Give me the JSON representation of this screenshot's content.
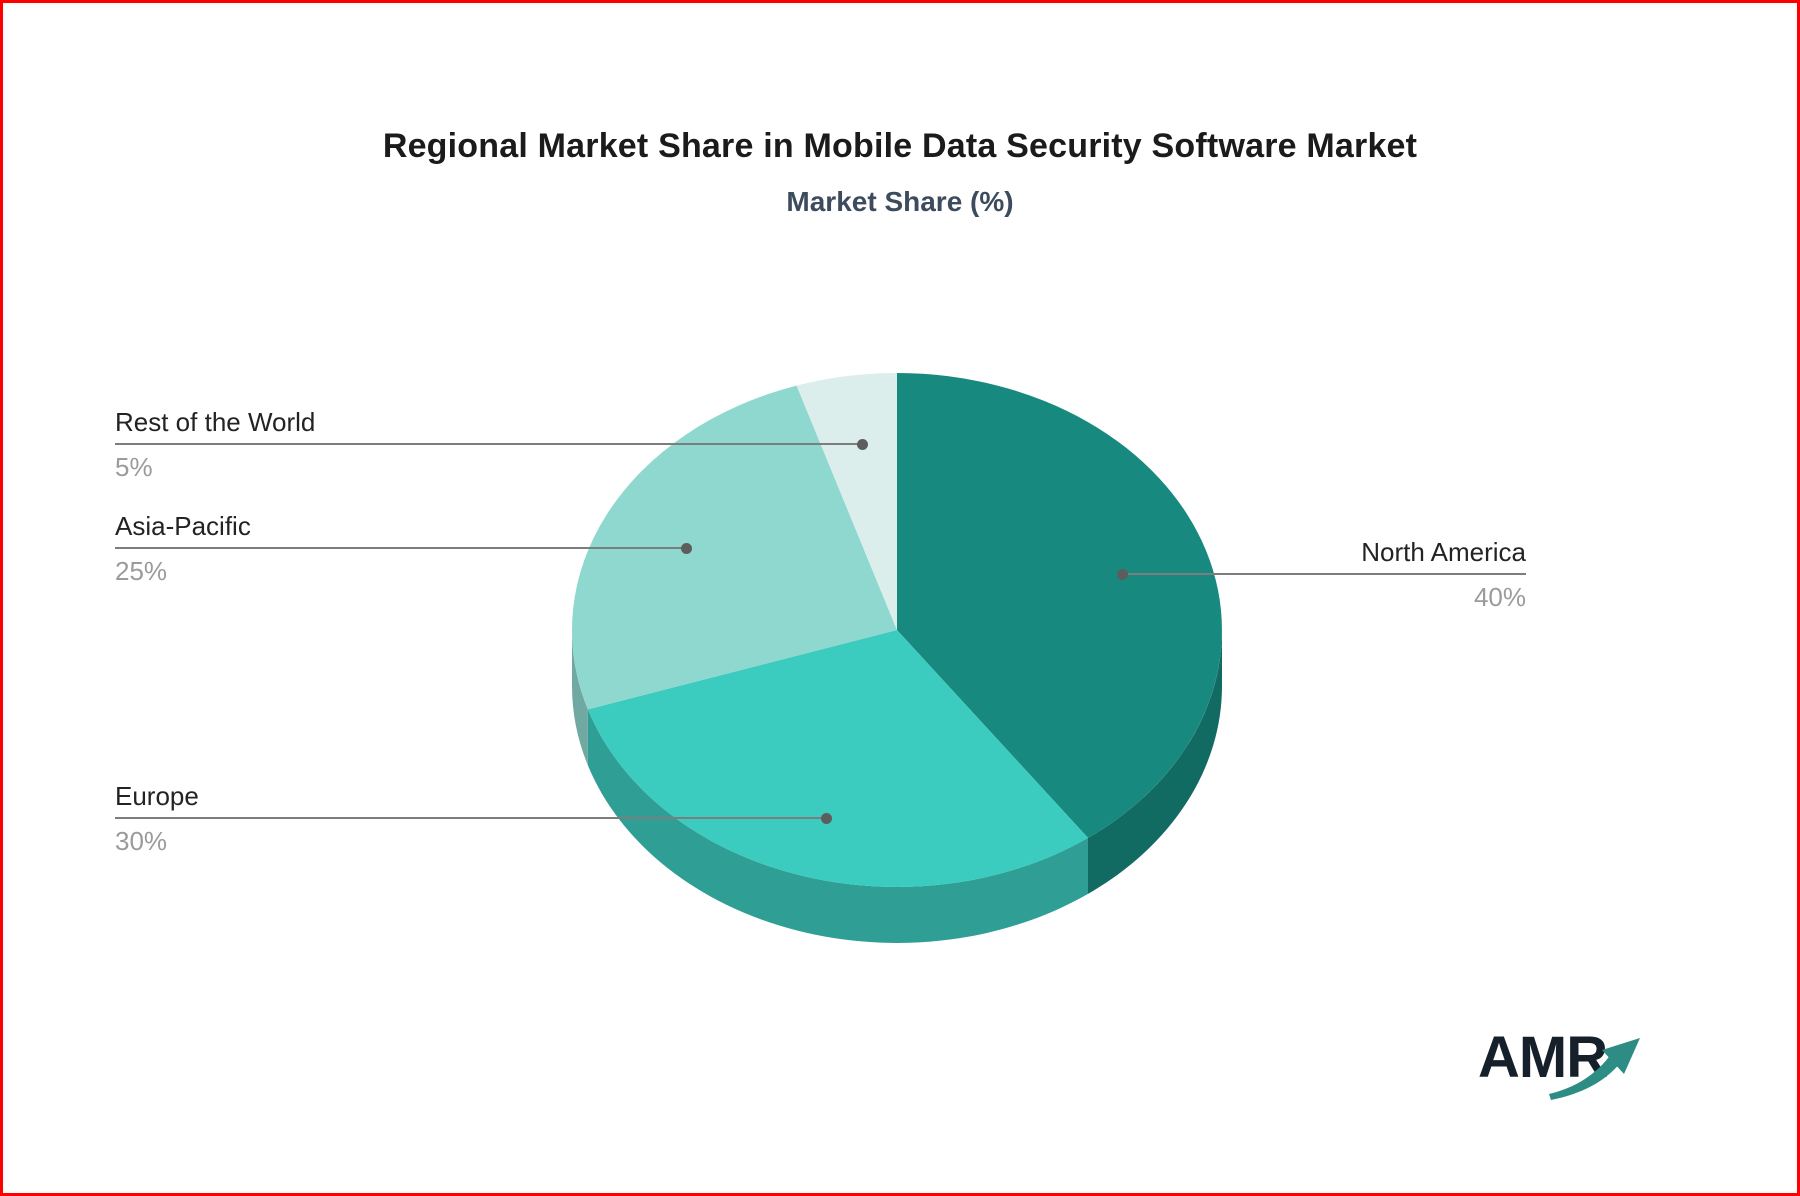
{
  "page": {
    "title": "Regional Market Share in Mobile Data Security Software Market",
    "subtitle": "Market Share (%)",
    "background_color": "#ffffff",
    "frame_color": "#ff0000",
    "title_color": "#1b1b1b",
    "subtitle_color": "#3c4b5d"
  },
  "logo": {
    "text": "AMR",
    "text_color": "#15202a",
    "arrow_color": "#2d8c84"
  },
  "chart_data": {
    "type": "pie",
    "style": "3d",
    "title": "Regional Market Share in Mobile Data Security Software Market",
    "subtitle": "Market Share (%)",
    "unit": "%",
    "direction": "clockwise",
    "start_angle": "12-oclock",
    "legend_position": "outside-leader-lines",
    "grid": false,
    "slices": [
      {
        "label": "North America",
        "value": 40,
        "display": "40%",
        "color": "#17897f",
        "label_side": "right"
      },
      {
        "label": "Europe",
        "value": 30,
        "display": "30%",
        "color": "#3ccbbf",
        "label_side": "left"
      },
      {
        "label": "Asia-Pacific",
        "value": 25,
        "display": "25%",
        "color": "#8fd8d0",
        "label_side": "left"
      },
      {
        "label": "Rest of the World",
        "value": 5,
        "display": "5%",
        "color": "#dceeeb",
        "label_side": "left"
      }
    ],
    "leader_line_color": "#7d7d7d",
    "leader_dot_color": "#5d5d5d",
    "label_text_color": "#232323",
    "value_text_color": "#9b9b9b",
    "side_shade_factor": 0.78
  }
}
